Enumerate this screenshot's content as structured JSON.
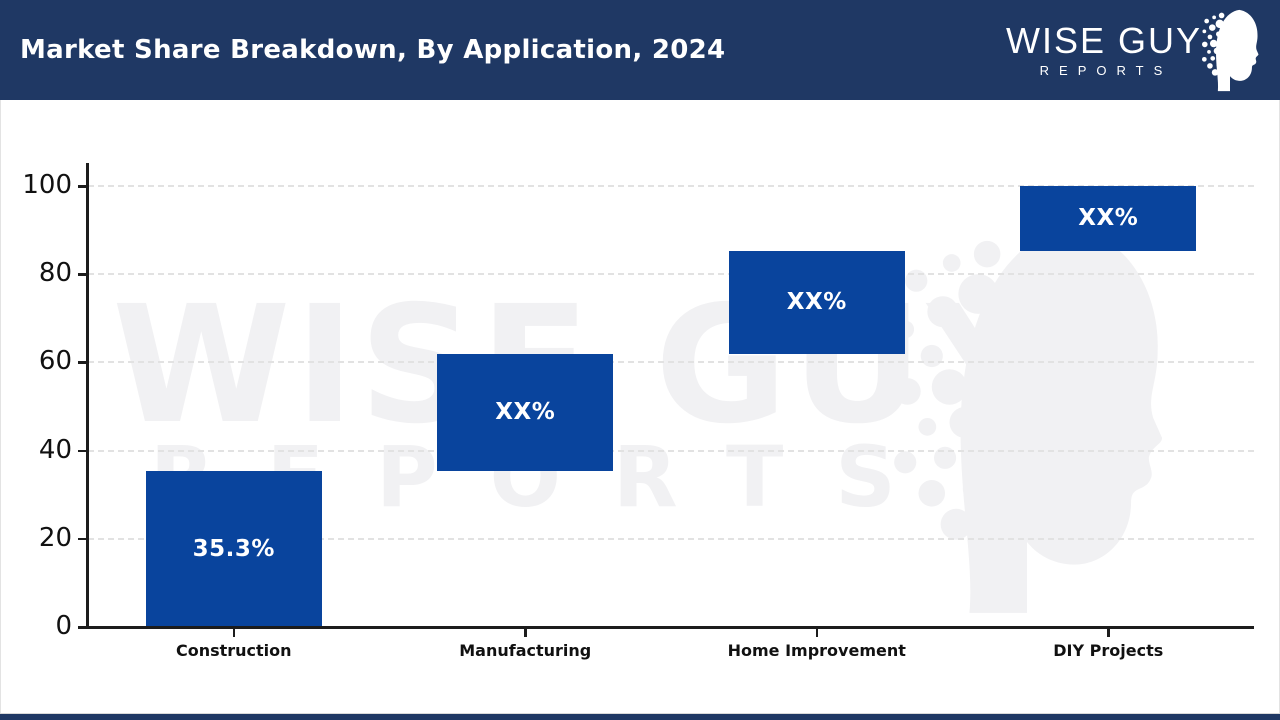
{
  "header": {
    "title": "Market Share Breakdown, By Application, 2024",
    "logo": {
      "line1": "WISE GUY",
      "line2": "REPORTS",
      "face_icon": "head-profile-dots"
    }
  },
  "watermark": {
    "line1": "WISE GUY",
    "line2": "REPORTS",
    "face_icon": "head-profile-dots"
  },
  "colors": {
    "header_bg": "#1F3864",
    "footer_bg": "#1F3864",
    "bar": "#09449D",
    "bar_label": "#FFFFFF",
    "axis": "#1C1C1C",
    "gridline": "#E2E2E2",
    "watermark": "#F1F1F3"
  },
  "chart_data": {
    "type": "bar",
    "subtype": "stacked-waterfall",
    "title": "Market Share Breakdown, By Application, 2024",
    "categories": [
      "Construction",
      "Manufacturing",
      "Home Improvement",
      "DIY Projects"
    ],
    "bars": [
      {
        "category": "Construction",
        "start": 0,
        "end": 35.3,
        "label": "35.3%"
      },
      {
        "category": "Manufacturing",
        "start": 35.3,
        "end": 62.0,
        "label": "XX%"
      },
      {
        "category": "Home Improvement",
        "start": 62.0,
        "end": 85.3,
        "label": "XX%"
      },
      {
        "category": "DIY Projects",
        "start": 85.3,
        "end": 100,
        "label": "XX%"
      }
    ],
    "xlabel": "",
    "ylabel": "",
    "ylim": [
      0,
      100
    ],
    "yticks": [
      0,
      20,
      40,
      60,
      80,
      100
    ],
    "grid": "horizontal-dashed",
    "legend": "none"
  }
}
